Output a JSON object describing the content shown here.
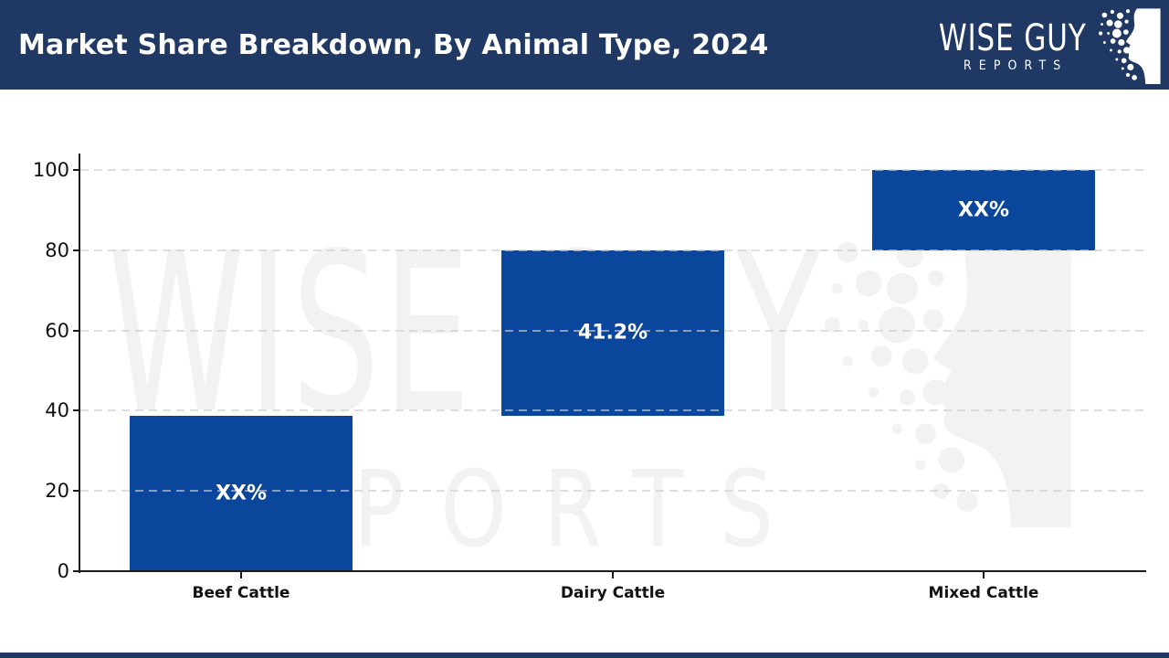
{
  "header": {
    "title": "Market Share Breakdown, By Animal Type, 2024",
    "logo": {
      "wordmark": "WISE GUY",
      "subtext": "REPORTS"
    }
  },
  "colors": {
    "header_bg": "#1F3864",
    "footer_bg": "#1F3864",
    "bar_fill": "#0A469B",
    "bar_label": "#FFFFFF",
    "grid_line": "#DCDCDC",
    "axis_line": "#1A1A1A",
    "tick_label": "#111111",
    "watermark": "#F2F2F2"
  },
  "chart_data": {
    "type": "bar",
    "subtype": "waterfall",
    "title": "Market Share Breakdown, By Animal Type, 2024",
    "categories": [
      "Beef Cattle",
      "Dairy Cattle",
      "Mixed Cattle"
    ],
    "segments": [
      {
        "category": "Beef Cattle",
        "start": 0,
        "end": 38.8,
        "label": "XX%"
      },
      {
        "category": "Dairy Cattle",
        "start": 38.8,
        "end": 80,
        "label": "41.2%"
      },
      {
        "category": "Mixed Cattle",
        "start": 80,
        "end": 100,
        "label": "XX%"
      }
    ],
    "yticks": [
      0,
      20,
      40,
      60,
      80,
      100
    ],
    "ylim": [
      0,
      104
    ],
    "xlabel": "",
    "ylabel": "",
    "grid": "horizontal-dashed",
    "legend": "none"
  }
}
